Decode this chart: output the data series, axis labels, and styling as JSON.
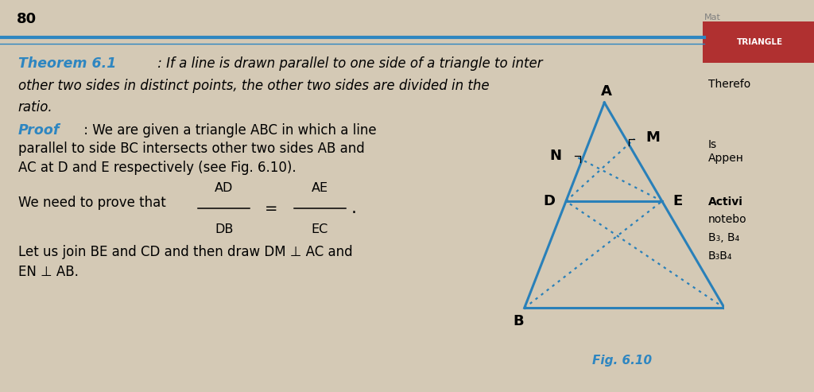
{
  "background_color": "#d4c9b5",
  "page_number": "80",
  "blue_color": "#2e86c1",
  "triangle_color": "#2980b9",
  "dashed_color": "#2980b9",
  "red_box_color": "#c0392b",
  "title_bold": "Theorem 6.1",
  "title_rest": " : If a line is drawn parallel to one side of a triangle to inter",
  "line2": "other two sides in distinct points, the other two sides are divided in the",
  "line3": "ratio.",
  "proof_bold": "Proof",
  "proof_rest": " : We are given a triangle ABC in which a line",
  "proof_line2": "parallel to side BC intersects other two sides AB and",
  "proof_line3": "AC at D and E respectively (see Fig. 6.10).",
  "formula_pre": "We need to prove that",
  "last_line1": "Let us join BE and CD and then draw DM ⊥ AC and",
  "last_line2": "EN ⊥ AB.",
  "fig_label": "Fig. 6.10",
  "right_box_text": "TRIANGLE",
  "right_therefo": "Therefo",
  "right_is": "Is",
  "right_appen": "Appен",
  "right_activi": "Activi",
  "right_notebo": "notebo",
  "right_b34a": "B₃, B₄",
  "right_b34b": "B₃B₄"
}
